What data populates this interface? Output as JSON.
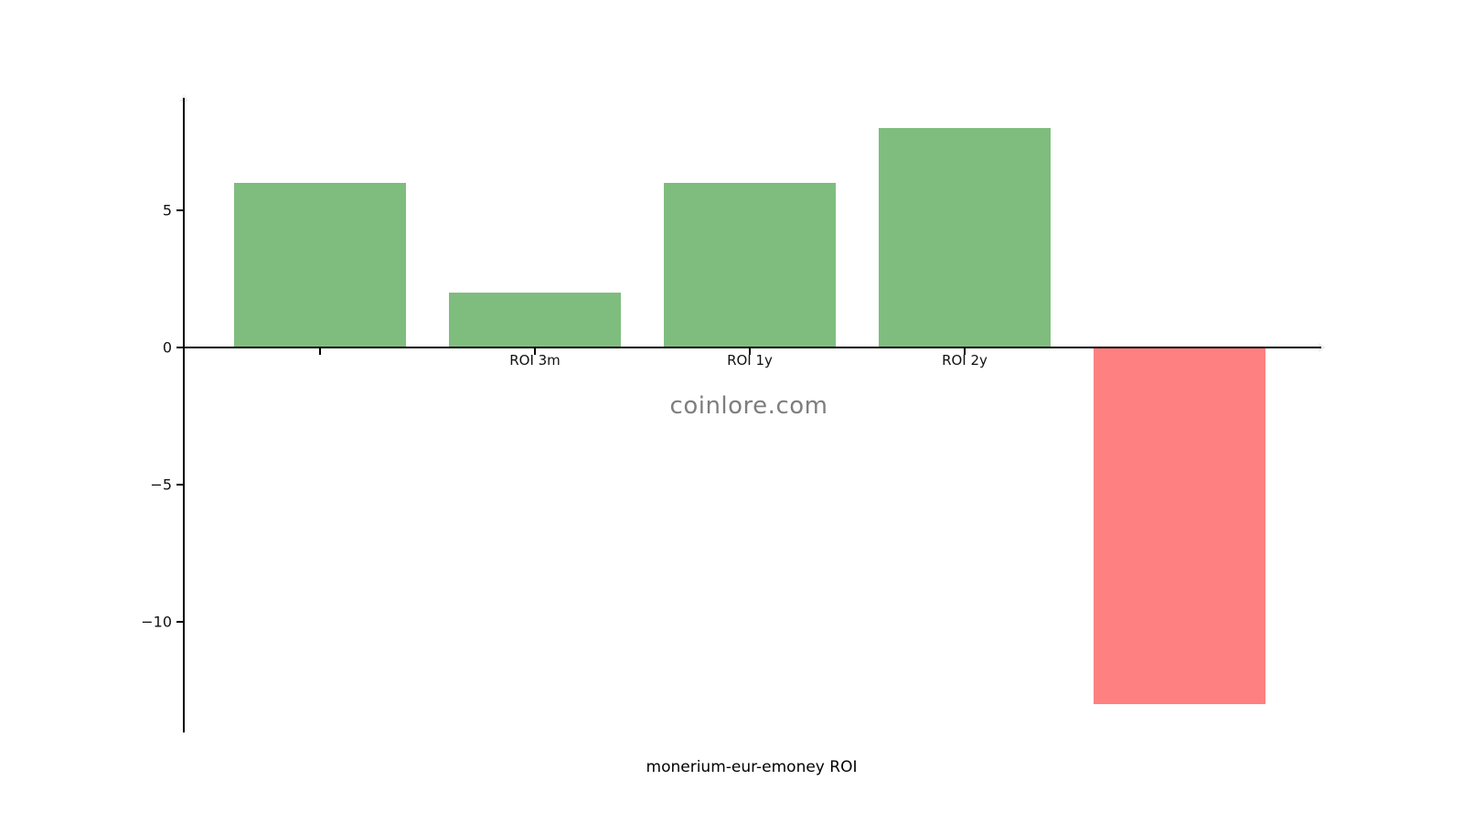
{
  "chart_data": {
    "type": "bar",
    "categories": [
      "",
      "ROI 3m",
      "ROI 1y",
      "ROI 2y",
      ""
    ],
    "values": [
      6,
      2,
      6,
      8,
      -13
    ],
    "series_name": "ROI",
    "title": "",
    "xlabel": "monerium-eur-emoney ROI",
    "ylabel": "",
    "yticks": [
      5,
      0,
      -5,
      -10
    ],
    "ytick_labels": [
      "5",
      "0",
      "−5",
      "−10"
    ],
    "ylim": [
      -14,
      9.1
    ],
    "grid": false,
    "legend": "none",
    "positive_color": "#7FBD7E",
    "negative_color": "#FF8080",
    "axis_color": "#000000",
    "watermark": "coinlore.com",
    "watermark_color": "#7E7E7E"
  }
}
